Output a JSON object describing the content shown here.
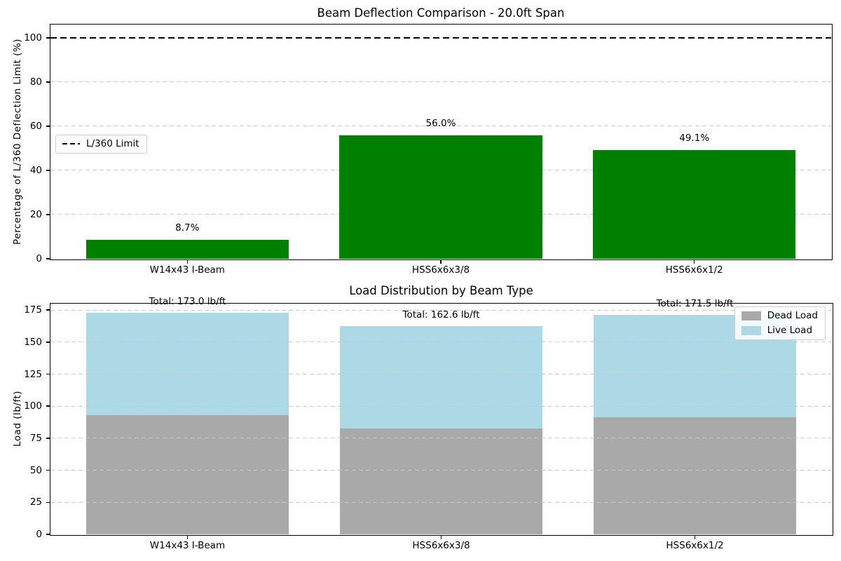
{
  "figure": {
    "background": "#ffffff"
  },
  "chart_data": [
    {
      "type": "bar",
      "title": "Beam Deflection Comparison - 20.0ft Span",
      "ylabel": "Percentage of L/360 Deflection Limit (%)",
      "xlabel": "",
      "categories": [
        "W14x43 I-Beam",
        "HSS6x6x3/8",
        "HSS6x6x1/2"
      ],
      "values": [
        8.7,
        56.0,
        49.1
      ],
      "bar_labels": [
        "8.7%",
        "56.0%",
        "49.1%"
      ],
      "bar_color": "#008000",
      "yticks": [
        0,
        20,
        40,
        60,
        80,
        100
      ],
      "ylim": [
        0,
        106
      ],
      "grid": {
        "axis": "y",
        "style": "dashed",
        "color": "#c8c8c8",
        "above_bars": false
      },
      "reference_line": {
        "value": 100,
        "style": "dashed",
        "color": "#000000",
        "label": "L/360 Limit"
      },
      "legend": {
        "position": "left-center",
        "entries": [
          {
            "label": "L/360 Limit",
            "marker": "dashed-line",
            "color": "#000000"
          }
        ]
      }
    },
    {
      "type": "stacked-bar",
      "title": "Load Distribution by Beam Type",
      "ylabel": "Load (lb/ft)",
      "xlabel": "",
      "categories": [
        "W14x43 I-Beam",
        "HSS6x6x3/8",
        "HSS6x6x1/2"
      ],
      "series": [
        {
          "name": "Dead Load",
          "color": "#a9a9a9",
          "values": [
            93.0,
            82.6,
            91.5
          ]
        },
        {
          "name": "Live Load",
          "color": "#add8e6",
          "values": [
            80.0,
            80.0,
            80.0
          ]
        }
      ],
      "totals": [
        173.0,
        162.6,
        171.5
      ],
      "total_labels": [
        "Total: 173.0 lb/ft",
        "Total: 162.6 lb/ft",
        "Total: 171.5 lb/ft"
      ],
      "yticks": [
        0,
        25,
        50,
        75,
        100,
        125,
        150,
        175
      ],
      "ylim": [
        0,
        180
      ],
      "grid": {
        "axis": "y",
        "style": "dashed",
        "color": "#c8c8c8",
        "above_bars": true
      },
      "legend": {
        "position": "top-right",
        "entries": [
          {
            "label": "Dead Load",
            "marker": "patch",
            "color": "#a9a9a9"
          },
          {
            "label": "Live Load",
            "marker": "patch",
            "color": "#add8e6"
          }
        ]
      }
    }
  ]
}
